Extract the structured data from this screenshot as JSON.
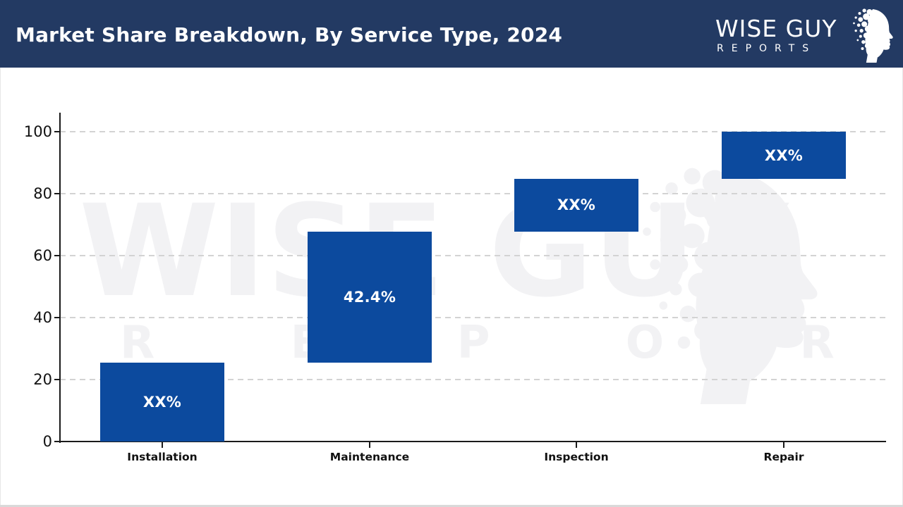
{
  "header": {
    "title": "Market Share Breakdown, By Service Type, 2024",
    "logo": {
      "name": "WISE GUY",
      "sub": "REPORTS"
    }
  },
  "watermark": {
    "name": "WISE GUY",
    "sub": "R E P O R T S"
  },
  "colors": {
    "header_bg": "#233a63",
    "bar_fill": "#0c4a9e",
    "bar_label": "#ffffff",
    "gridline": "#d3d3d3",
    "axis": "#1a1a1a",
    "watermark": "#f2f2f4"
  },
  "chart_data": {
    "type": "bar",
    "subtype": "floating-waterfall",
    "title": "Market Share Breakdown, By Service Type, 2024",
    "xlabel": "",
    "ylabel": "",
    "categories": [
      "Installation",
      "Maintenance",
      "Inspection",
      "Repair"
    ],
    "segments": [
      {
        "category": "Installation",
        "start": 0,
        "end": 25.4,
        "label": "XX%"
      },
      {
        "category": "Maintenance",
        "start": 25.4,
        "end": 67.8,
        "label": "42.4%"
      },
      {
        "category": "Inspection",
        "start": 67.8,
        "end": 84.7,
        "label": "XX%"
      },
      {
        "category": "Repair",
        "start": 84.7,
        "end": 100,
        "label": "XX%"
      }
    ],
    "y_ticks": [
      0,
      20,
      40,
      60,
      80,
      100
    ],
    "ylim": [
      0,
      106
    ],
    "grid": "horizontal-dashed",
    "legend": "none"
  }
}
